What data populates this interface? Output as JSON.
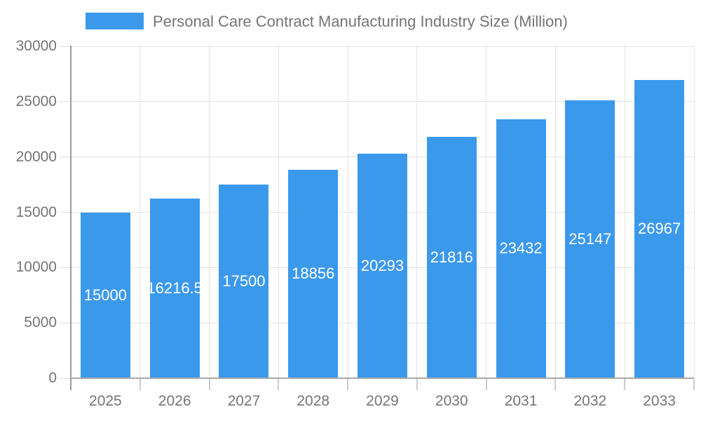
{
  "chart_data": {
    "type": "bar",
    "title": "Personal Care Contract Manufacturing Industry Size (Million)",
    "categories": [
      "2025",
      "2026",
      "2027",
      "2028",
      "2029",
      "2030",
      "2031",
      "2032",
      "2033"
    ],
    "values": [
      15000,
      16216.5,
      17500,
      18856,
      20293,
      21816,
      23432,
      25147,
      26967
    ],
    "bar_labels": [
      "15000",
      "16216.5",
      "17500",
      "18856",
      "20293",
      "21816",
      "23432",
      "25147",
      "26967"
    ],
    "xlabel": "",
    "ylabel": "",
    "ylim": [
      0,
      30000
    ],
    "ytick_interval": 5000,
    "ytick_labels": [
      "0",
      "5000",
      "10000",
      "15000",
      "20000",
      "25000",
      "30000"
    ],
    "grid": true,
    "legend_position": "top",
    "colors": {
      "bar": "#3b99ec",
      "annotation_text": "#ffffff",
      "axis_text": "#757575",
      "title_text": "#757575",
      "gridline": "#e3e3e3",
      "y_axis_line": "#999999",
      "baseline": "#a9a9a9",
      "x_tick": "#cccccc",
      "background": "#ffffff"
    }
  }
}
